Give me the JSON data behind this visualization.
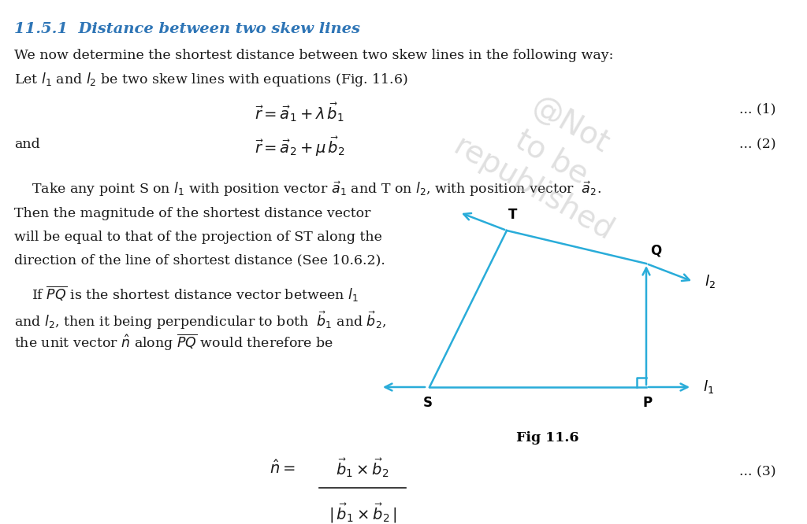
{
  "title": "11.5.1  Distance between two skew lines",
  "title_color": "#2e75b6",
  "bg_color": "#ffffff",
  "body_text_color": "#1a1a1a",
  "fig_color": "#29acd9",
  "line1": "We now determine the shortest distance between two skew lines in the following way:",
  "line2": "Let $l_1$ and $l_2$ be two skew lines with equations (Fig. 11.6)",
  "eq1": "$\\vec{r} = \\vec{a}_1 + \\lambda\\, \\vec{b}_1$",
  "eq1_num": "... (1)",
  "eq2": "$\\vec{r} = \\vec{a}_2 + \\mu\\, \\vec{b}_2$",
  "eq2_num": "... (2)",
  "eq3_num": "... (3)",
  "and_text": "and",
  "para1": "    Take any point S on $l_1$ with position vector $\\vec{a}_1$ and T on $l_2$, with position vector  $\\vec{a}_2$.",
  "para2": "Then the magnitude of the shortest distance vector",
  "para3": "will be equal to that of the projection of ST along the",
  "para4": "direction of the line of shortest distance (See 10.6.2).",
  "para5": "    If $\\overline{PQ}$ is the shortest distance vector between $l_1$",
  "para6": "and $l_2$, then it being perpendicular to both  $\\vec{b}_1$ and $\\vec{b}_2$,",
  "para7": "the unit vector $\\hat{n}$ along $\\overline{PQ}$ would therefore be",
  "fig_caption": "Fig 11.6",
  "watermark_lines": [
    "@Not",
    "to be",
    "republished"
  ],
  "watermark_color": "#bbbbbb"
}
